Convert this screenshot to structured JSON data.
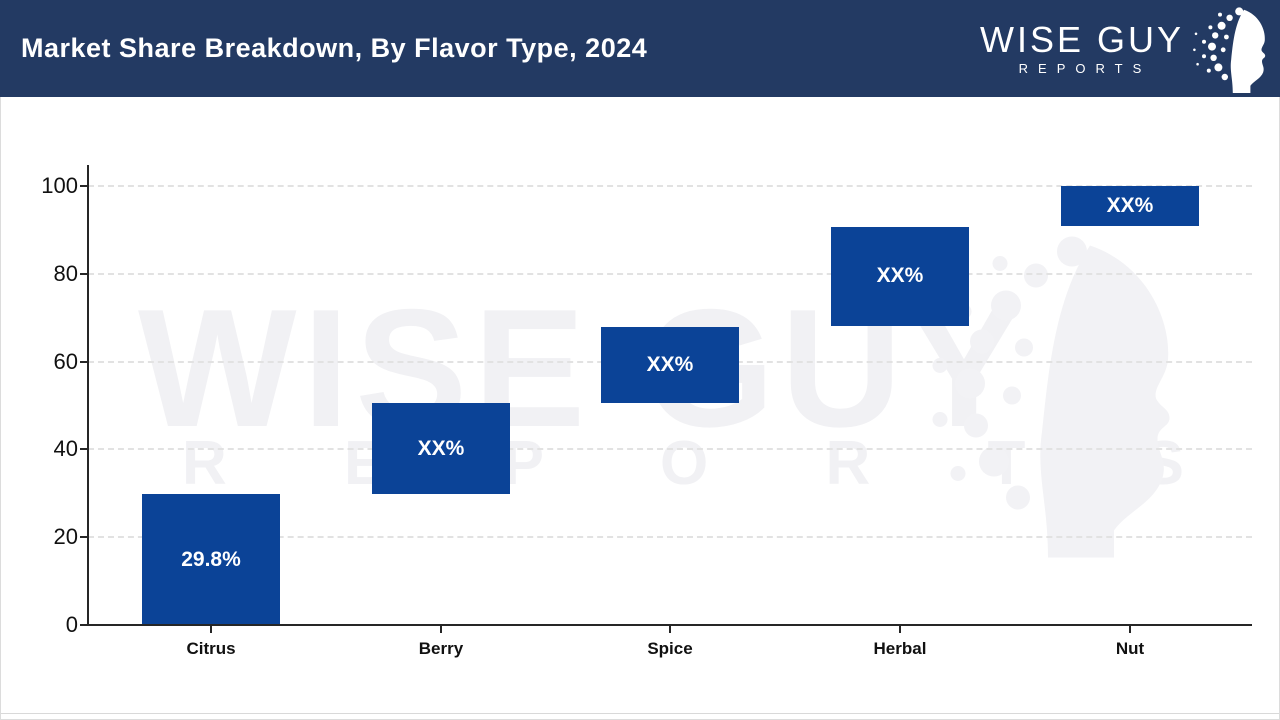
{
  "header": {
    "title": "Market Share Breakdown, By Flavor Type, 2024",
    "logo": {
      "line1": "WISE GUY",
      "line2": "REPORTS",
      "face_icon": "wiseguy-face-icon"
    }
  },
  "watermark": {
    "line1": "WISE GUY",
    "line2": "R E P O R T S"
  },
  "colors": {
    "header_bg": "#233a63",
    "bar_fill": "#0b4397",
    "bar_label_text": "#ffffff",
    "axis": "#262626",
    "gridline": "#e2e2e2",
    "watermark": "#f1f1f4",
    "tick_label_text": "#111111"
  },
  "chart_data": {
    "type": "bar",
    "subtype": "waterfall-floating-bars",
    "title": "Market Share Breakdown, By Flavor Type, 2024",
    "xlabel": "",
    "ylabel": "",
    "categories": [
      "Citrus",
      "Berry",
      "Spice",
      "Herbal",
      "Nut"
    ],
    "segments": [
      {
        "category": "Citrus",
        "start": 0,
        "end": 29.8,
        "label": "29.8%"
      },
      {
        "category": "Berry",
        "start": 29.8,
        "end": 50.6,
        "label": "XX%"
      },
      {
        "category": "Spice",
        "start": 50.6,
        "end": 67.9,
        "label": "XX%"
      },
      {
        "category": "Herbal",
        "start": 68.2,
        "end": 90.7,
        "label": "XX%"
      },
      {
        "category": "Nut",
        "start": 90.9,
        "end": 100,
        "label": "XX%"
      }
    ],
    "yticks": [
      0,
      20,
      40,
      60,
      80,
      100
    ],
    "ylim": [
      0,
      105
    ],
    "grid": "horizontal-dashed",
    "legend": "none"
  }
}
